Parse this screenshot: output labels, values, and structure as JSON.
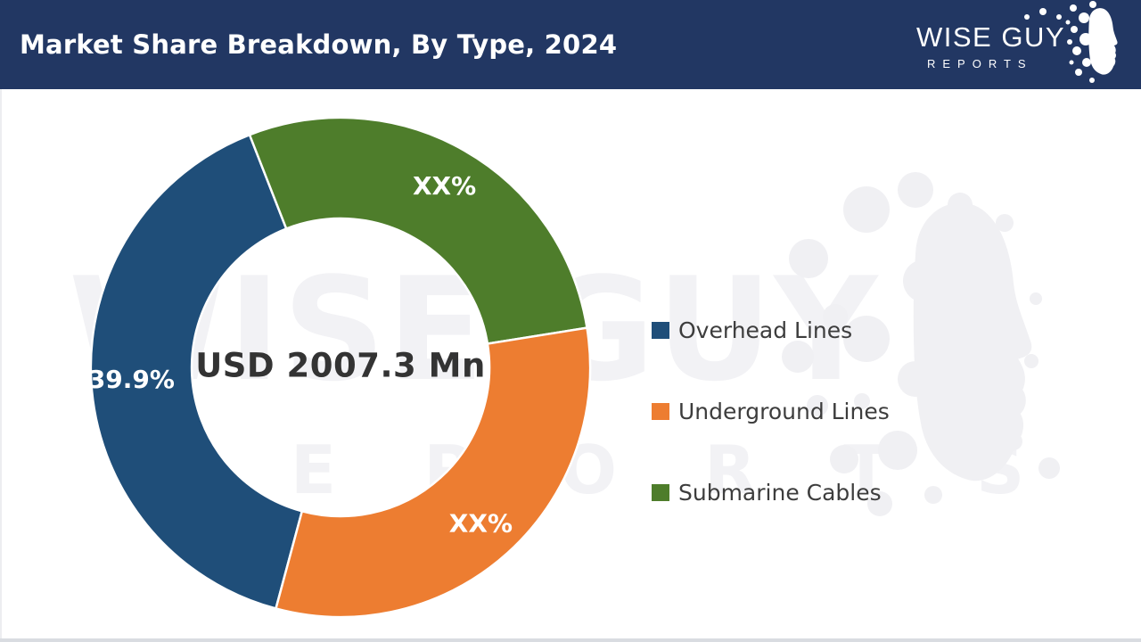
{
  "header": {
    "title": "Market Share Breakdown, By Type, 2024",
    "bg_color": "#223763",
    "logo": {
      "line1": "WISE GUY",
      "line2": "REPORTS"
    }
  },
  "chart_data": {
    "type": "pie",
    "subtype": "donut",
    "title": "Market Share Breakdown, By Type, 2024",
    "center_label": "USD 2007.3 Mn",
    "direction": "clockwise",
    "start_angle_clock_deg": 195,
    "slices": [
      {
        "name": "Overhead Lines",
        "value_pct": 39.9,
        "display_label": "39.9%",
        "color": "#1F4E79"
      },
      {
        "name": "Submarine Cables",
        "value_pct": 28.4,
        "display_label": "XX%",
        "color": "#4E7D2B"
      },
      {
        "name": "Underground Lines",
        "value_pct": 31.7,
        "display_label": "XX%",
        "color": "#ED7D31"
      }
    ],
    "legend_position": "right",
    "note": "Submarine Cables and Underground Lines percentages are masked as XX% in the image; their values are estimated from arc angles"
  },
  "legend": {
    "items": [
      {
        "label": "Overhead Lines",
        "color": "#1F4E79"
      },
      {
        "label": "Underground Lines",
        "color": "#ED7D31"
      },
      {
        "label": "Submarine Cables",
        "color": "#4E7D2B"
      }
    ]
  },
  "watermark": {
    "line1": "WISE GUY",
    "line2": "R E P O R T S"
  },
  "colors": {
    "header_bg": "#223763",
    "center_text": "#333333",
    "legend_text": "#3d3d3d",
    "watermark": "#f2f2f5",
    "slice_label_text": "#ffffff"
  }
}
